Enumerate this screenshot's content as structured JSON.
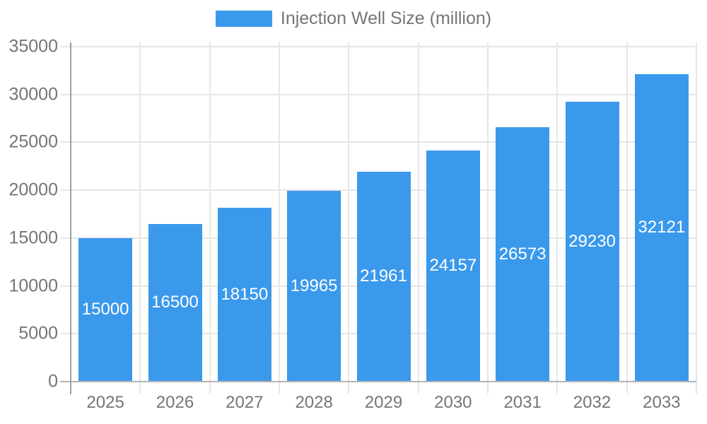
{
  "legend": {
    "label": "Injection Well Size (million)"
  },
  "chart_data": {
    "type": "bar",
    "title": "",
    "xlabel": "",
    "ylabel": "",
    "categories": [
      "2025",
      "2026",
      "2027",
      "2028",
      "2029",
      "2030",
      "2031",
      "2032",
      "2033"
    ],
    "series": [
      {
        "name": "Injection Well Size (million)",
        "values": [
          15000,
          16500,
          18150,
          19965,
          21961,
          24157,
          26573,
          29230,
          32121
        ]
      }
    ],
    "value_labels": [
      "15000",
      "16500",
      "18150",
      "19965",
      "21961",
      "24157",
      "26573",
      "29230",
      "32121"
    ],
    "ylim": [
      0,
      35000
    ],
    "ytick_step": 5000,
    "ytick_labels": [
      "0",
      "5000",
      "10000",
      "15000",
      "20000",
      "25000",
      "30000",
      "35000"
    ],
    "grid": true,
    "legend_position": "top",
    "value_label_position": "inside-center",
    "colors": {
      "bar": "#3b99ec",
      "value_label": "#ffffff",
      "grid_line": "#e6e6e6",
      "y_axis_line": "#9e9e9e",
      "x_axis_line": "#b3b3b3",
      "tick_text": "#757575",
      "legend_text": "#757575"
    }
  }
}
